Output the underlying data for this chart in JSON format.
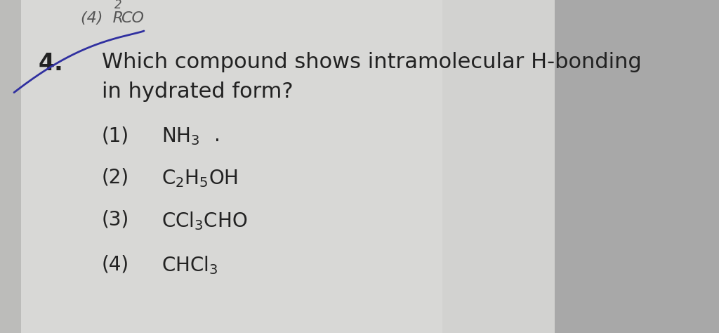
{
  "bg_main": "#c8c8c8",
  "bg_paper": "#d8d8d6",
  "bg_right_shadow": "#b0b0b0",
  "bg_left_margin": "#c0c0be",
  "text_color": "#333333",
  "text_color_dark": "#222222",
  "blue_curve_color": "#3030a0",
  "top_text_raw": "(4)  R",
  "top_text_sub": "2",
  "top_text_end": "CO",
  "question_number": "4.",
  "question_line1": "Which compound shows intramolecular H-bonding",
  "question_line2": "in hydrated form?",
  "options": [
    {
      "num": "(1)",
      "latex": "$\\mathrm{NH_3}$",
      "dot": true
    },
    {
      "num": "(2)",
      "latex": "$\\mathrm{C_2H_5OH}$",
      "dot": false
    },
    {
      "num": "(3)",
      "latex": "$\\mathrm{CCl_3CHO}$",
      "dot": false
    },
    {
      "num": "(4)",
      "latex": "$\\mathrm{CHCl_3}$",
      "dot": false
    }
  ],
  "font_size_top": 16,
  "font_size_question": 22,
  "font_size_options": 20
}
